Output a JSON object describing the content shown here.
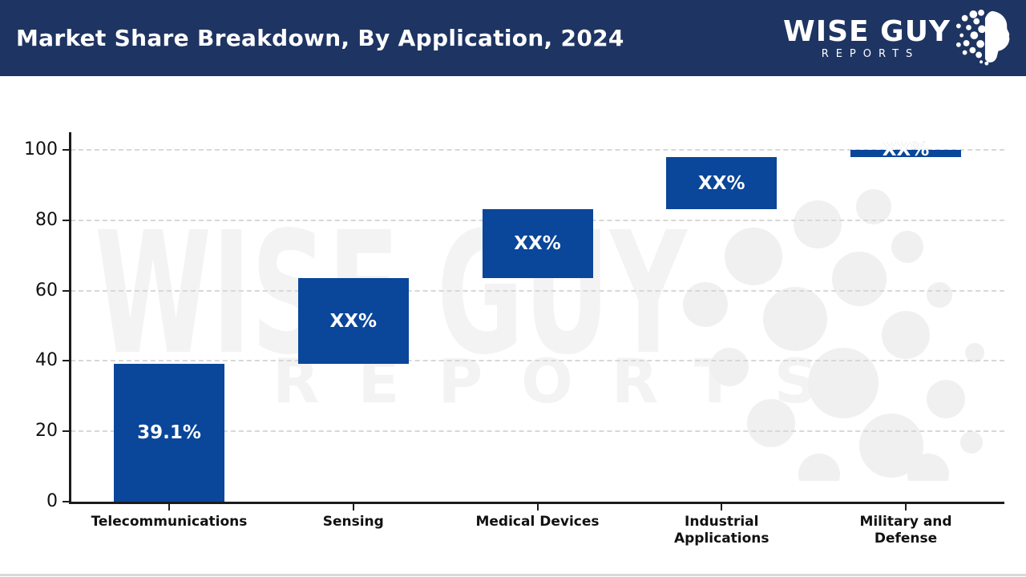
{
  "header": {
    "title": "Market Share Breakdown, By Application, 2024",
    "logo": {
      "brand_line1": "WISE GUY",
      "brand_line2": "REPORTS"
    }
  },
  "watermark": {
    "line1": "WISE GUY",
    "line2": "REPORTS"
  },
  "colors": {
    "header_bg": "#1e3462",
    "bar": "#0a4699",
    "bar_label_inside": "#ffffff",
    "bar_label_outside": "#14386f",
    "axis": "#1c1c1c",
    "gridline": "#d8d8d8",
    "watermark": "#f3f3f3",
    "footer_line": "#d9d9d9",
    "text": "#111111"
  },
  "chart_data": {
    "type": "bar",
    "subtype": "waterfall",
    "title": "Market Share Breakdown, By Application, 2024",
    "xlabel": "",
    "ylabel": "",
    "ylim": [
      0,
      100
    ],
    "yticks": [
      0,
      20,
      40,
      60,
      80,
      100
    ],
    "grid": "horizontal-dashed",
    "legend": null,
    "categories": [
      "Telecommunications",
      "Sensing",
      "Medical Devices",
      "Industrial\nApplications",
      "Military and\nDefense"
    ],
    "segments": [
      {
        "category": "Telecommunications",
        "start": 0,
        "end": 39.1,
        "value": 39.1,
        "label": "39.1%"
      },
      {
        "category": "Sensing",
        "start": 39.1,
        "end": 63.6,
        "value": 24.5,
        "label": "XX%"
      },
      {
        "category": "Medical Devices",
        "start": 63.6,
        "end": 83.1,
        "value": 19.5,
        "label": "XX%"
      },
      {
        "category": "Industrial Applications",
        "start": 83.1,
        "end": 97.9,
        "value": 14.8,
        "label": "XX%"
      },
      {
        "category": "Military and Defense",
        "start": 97.9,
        "end": 100,
        "value": 2.1,
        "label": "XX%"
      }
    ]
  }
}
